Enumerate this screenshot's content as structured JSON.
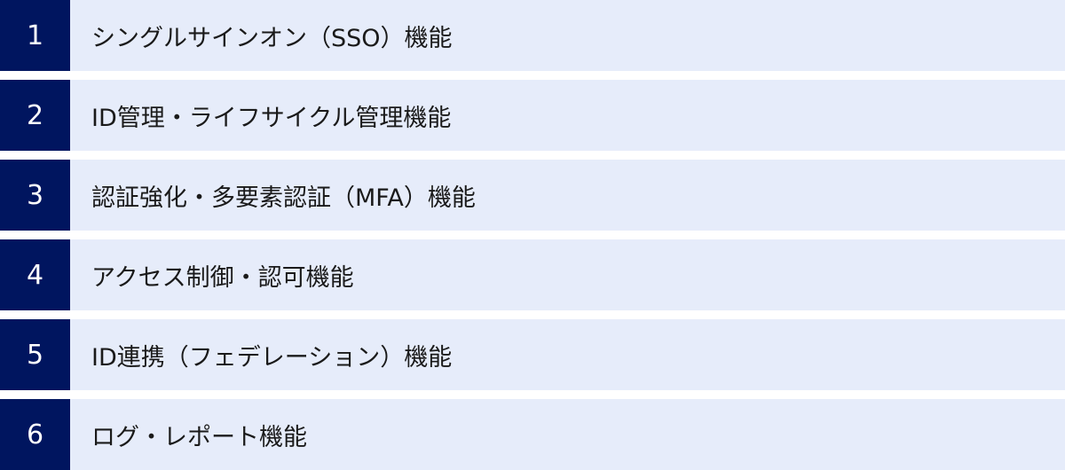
{
  "colors": {
    "number_bg": "#00155f",
    "row_bg": "#e6ecfa"
  },
  "items": [
    {
      "number": "1",
      "label": "シングルサインオン（SSO）機能"
    },
    {
      "number": "2",
      "label": "ID管理・ライフサイクル管理機能"
    },
    {
      "number": "3",
      "label": "認証強化・多要素認証（MFA）機能"
    },
    {
      "number": "4",
      "label": "アクセス制御・認可機能"
    },
    {
      "number": "5",
      "label": "ID連携（フェデレーション）機能"
    },
    {
      "number": "6",
      "label": "ログ・レポート機能"
    }
  ]
}
